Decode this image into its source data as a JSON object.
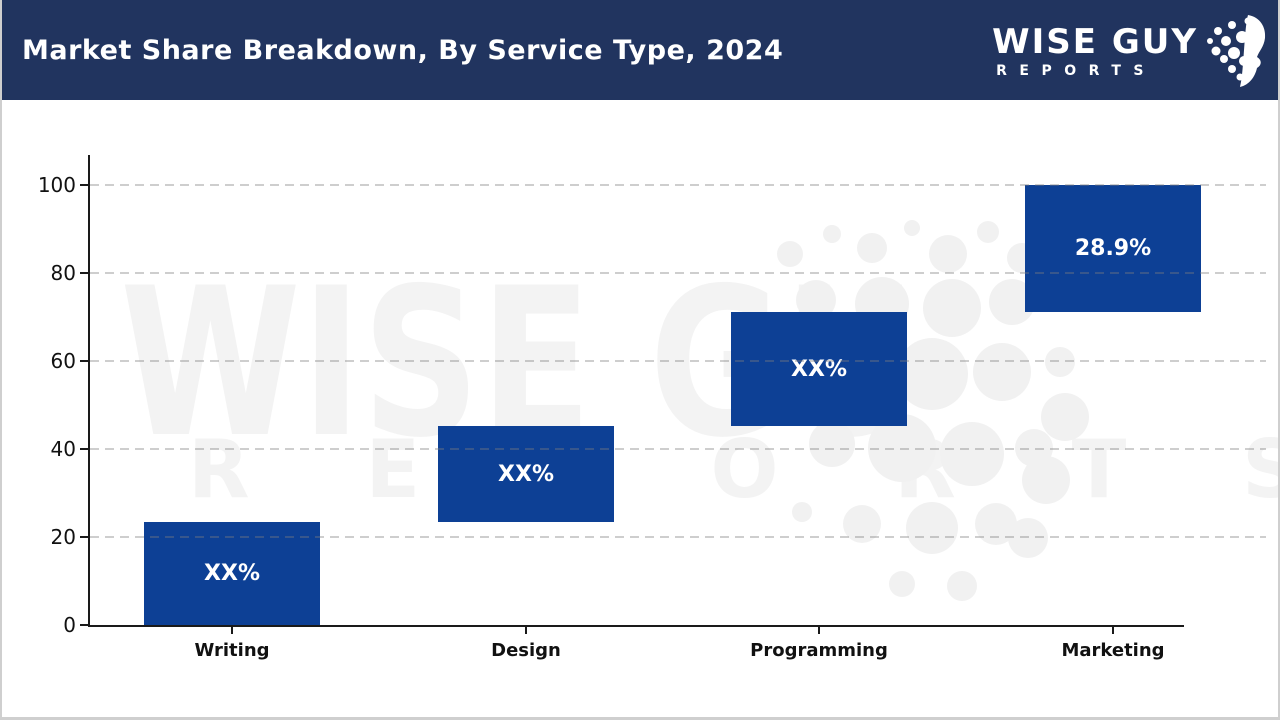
{
  "header": {
    "title": "Market Share Breakdown, By Service Type, 2024",
    "logo": {
      "line1": "WISE GUY",
      "line2": "REPORTS"
    }
  },
  "watermark": {
    "line1": "WISE GU",
    "line2": "R E P O R T S"
  },
  "chart_data": {
    "type": "bar",
    "subtype": "floating_waterfall",
    "title": "Market Share Breakdown, By Service Type, 2024",
    "categories": [
      "Writing",
      "Design",
      "Programming",
      "Marketing"
    ],
    "segments": [
      {
        "category": "Writing",
        "start": 0,
        "end": 23.4,
        "label": "XX%"
      },
      {
        "category": "Design",
        "start": 23.4,
        "end": 45.2,
        "label": "XX%"
      },
      {
        "category": "Programming",
        "start": 45.2,
        "end": 71.1,
        "label": "XX%"
      },
      {
        "category": "Marketing",
        "start": 71.1,
        "end": 100,
        "label": "28.9%"
      }
    ],
    "ylim": [
      0,
      100
    ],
    "yticks": [
      0,
      20,
      40,
      60,
      80,
      100
    ],
    "grid": "dashed_horizontal",
    "legend": "none",
    "xlabel": "",
    "ylabel": "",
    "colors": {
      "bar": "#0d4095",
      "bar_label": "#ffffff",
      "header_bg": "#21345f",
      "axis": "#1a1a1a",
      "gridline": "#d9d9d9",
      "watermark": "#f3f3f3"
    }
  }
}
